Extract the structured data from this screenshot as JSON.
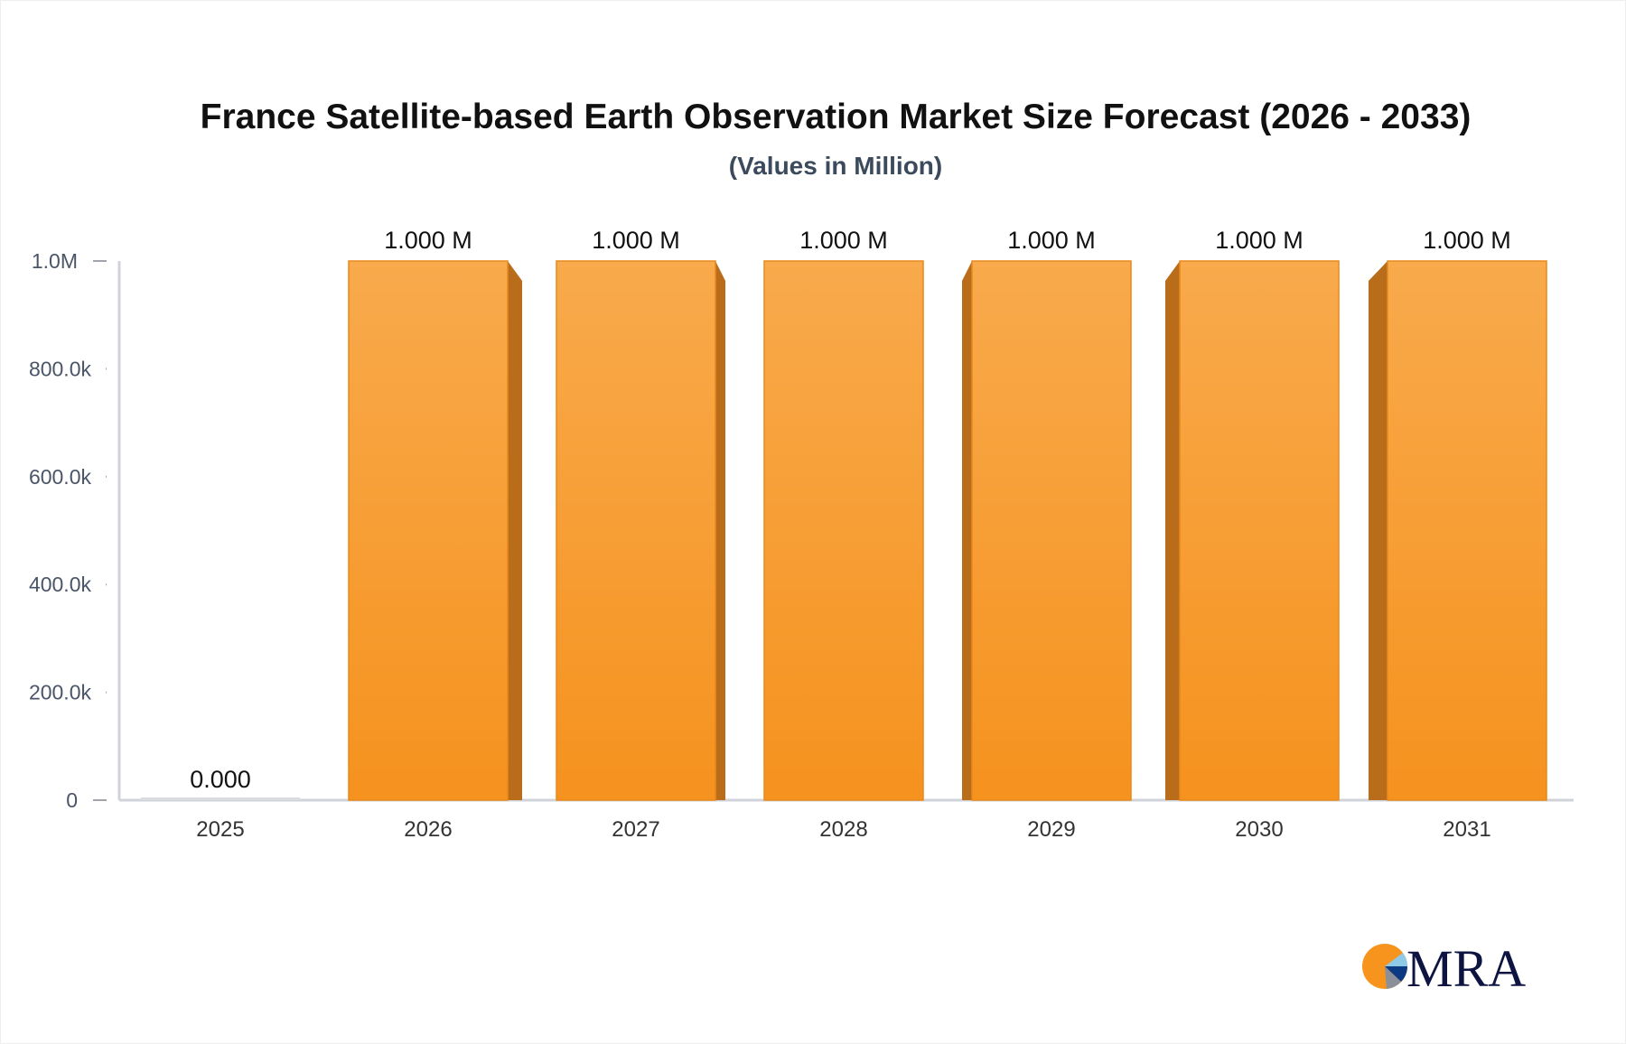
{
  "chart_data": {
    "type": "bar",
    "title": "France Satellite-based Earth Observation Market Size Forecast (2026 - 2033)",
    "subtitle": "(Values in Million)",
    "categories": [
      "2025",
      "2026",
      "2027",
      "2028",
      "2029",
      "2030",
      "2031"
    ],
    "values": [
      0,
      1000000,
      1000000,
      1000000,
      1000000,
      1000000,
      1000000
    ],
    "data_labels": [
      "0.000",
      "1.000 M",
      "1.000 M",
      "1.000 M",
      "1.000 M",
      "1.000 M",
      "1.000 M"
    ],
    "y_ticks": [
      0,
      200000,
      400000,
      600000,
      800000,
      1000000
    ],
    "y_tick_labels": [
      "0",
      "200.0k",
      "400.0k",
      "600.0k",
      "800.0k",
      "1.0M"
    ],
    "ylim": [
      0,
      1000000
    ],
    "xlabel": "",
    "ylabel": "",
    "grid": false,
    "legend": "none",
    "colors": {
      "bar_top": "#f8aa4c",
      "bar_bottom": "#f6921e",
      "bar_side": "#b96d1a",
      "axis": "#d0d3da"
    }
  },
  "logo": {
    "text": "MRA",
    "colors": [
      "#f7941d",
      "#8ecae6",
      "#0b3a82",
      "#8a8f9a",
      "#0d1442"
    ]
  }
}
